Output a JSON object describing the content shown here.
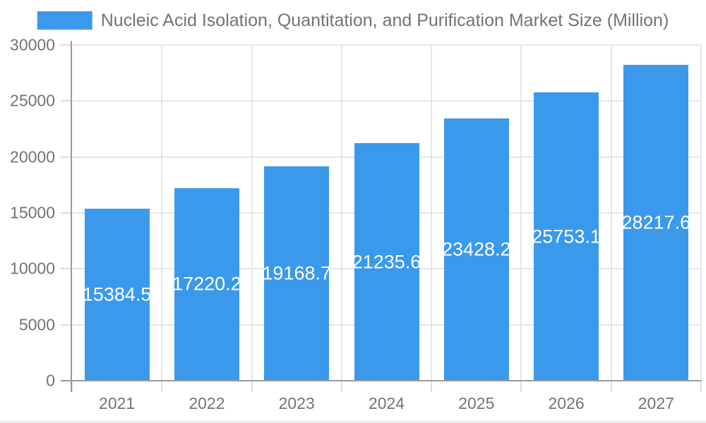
{
  "chart_data": {
    "type": "bar",
    "title": "Nucleic Acid Isolation, Quantitation, and Purification Market Size (Million)",
    "categories": [
      "2021",
      "2022",
      "2023",
      "2024",
      "2025",
      "2026",
      "2027"
    ],
    "values": [
      15384.5,
      17220.2,
      19168.7,
      21235.6,
      23428.2,
      25753.1,
      28217.6
    ],
    "value_labels": [
      "15384.5",
      "17220.2",
      "19168.7",
      "21235.6",
      "23428.2",
      "25753.1",
      "28217.6"
    ],
    "ylim": [
      0,
      30000
    ],
    "ytick_step": 5000,
    "ytick_labels": [
      "0",
      "5000",
      "10000",
      "15000",
      "20000",
      "25000",
      "30000"
    ],
    "xlabel": "",
    "ylabel": "",
    "grid": true,
    "legend_position": "top",
    "colors": {
      "bar": "#3b99ec",
      "axis_line": "#999999",
      "gridline": "#e6e6e6",
      "tick": "#dcdcdc",
      "text": "#737373",
      "value_label": "#ffffff",
      "background": "#ffffff"
    }
  }
}
